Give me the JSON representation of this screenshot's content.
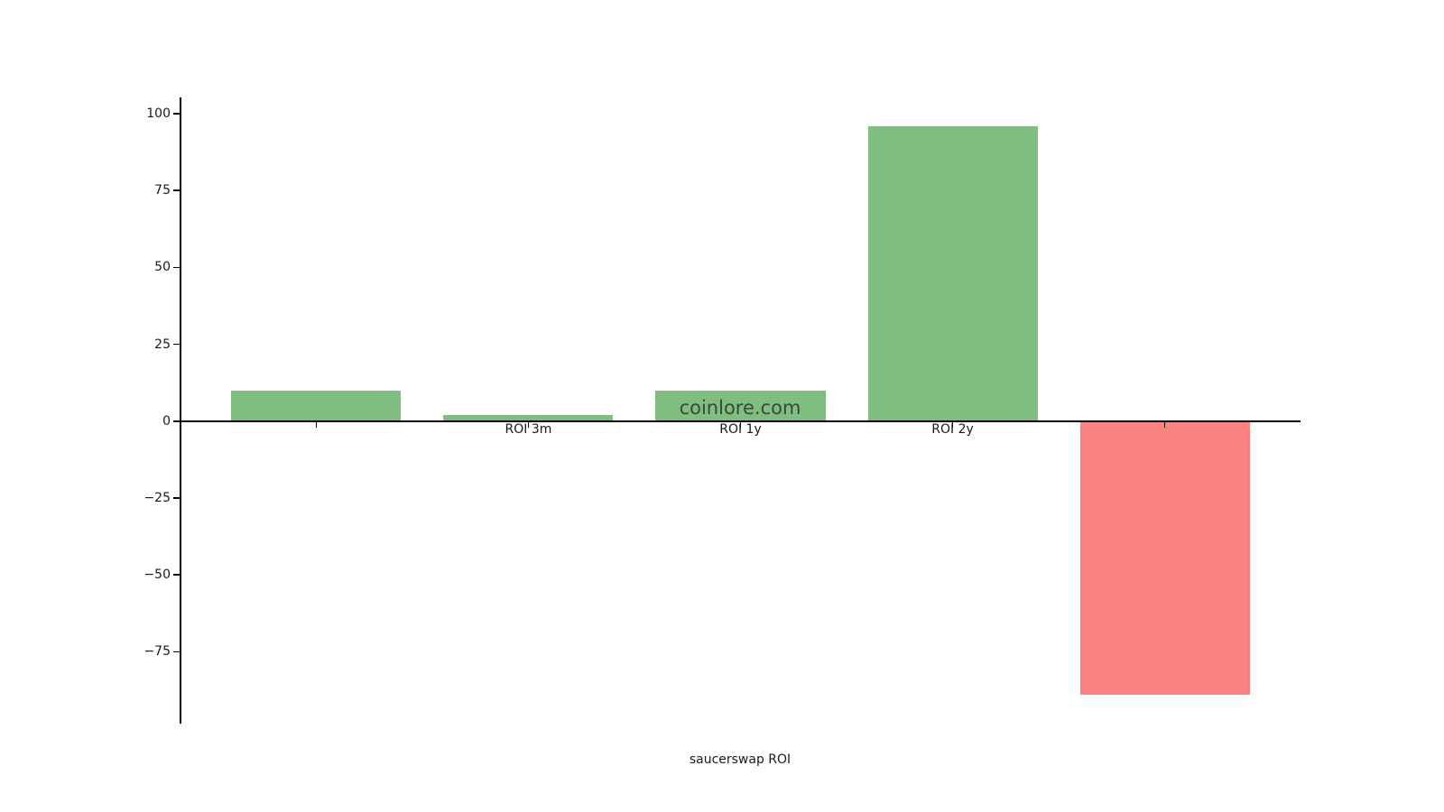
{
  "chart_data": {
    "type": "bar",
    "categories": [
      "",
      "ROI 3m",
      "ROI 1y",
      "ROI 2y",
      ""
    ],
    "values": [
      10,
      2,
      10,
      96,
      -89
    ],
    "title": "",
    "xlabel": "saucerswap ROI",
    "ylabel": "",
    "yticks": [
      100,
      75,
      50,
      25,
      0,
      -25,
      -50,
      -75
    ],
    "ylim": [
      -98.4,
      105.3
    ],
    "grid": false,
    "legend": false,
    "colors": {
      "positive_bar": "#7fbe7f",
      "negative_bar": "#fc8181",
      "axis": "#000000",
      "tick_text": "#1a1a1a"
    }
  },
  "watermark": {
    "text": "coinlore.com"
  }
}
